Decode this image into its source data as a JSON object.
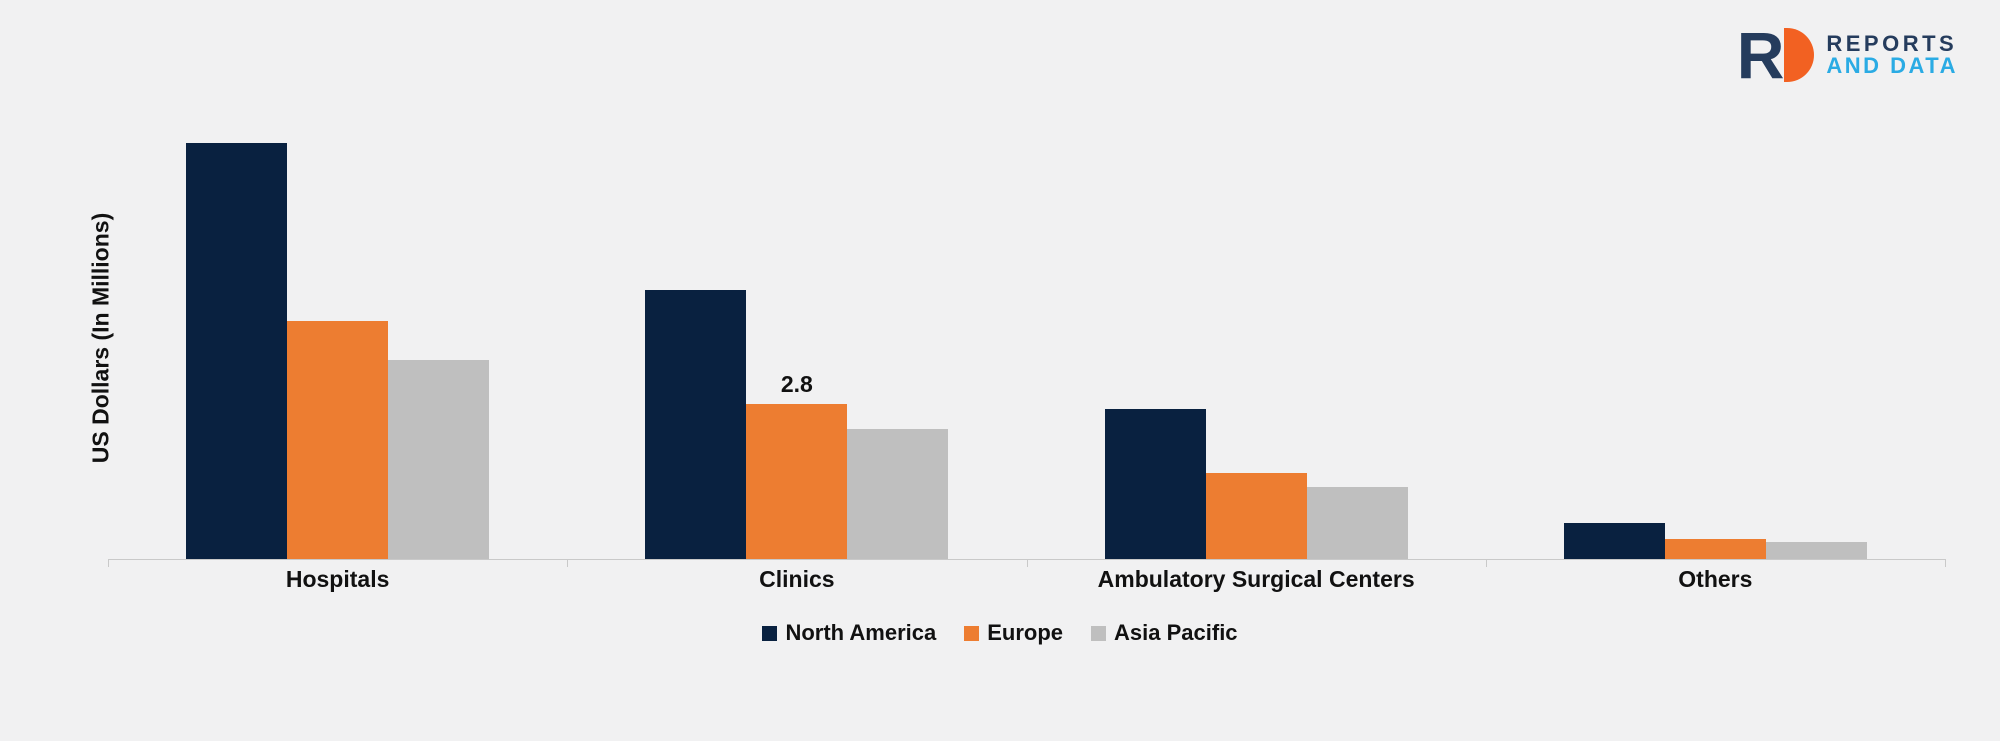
{
  "logo": {
    "mark_r": "R",
    "mark_d": "D",
    "line1": "REPORTS",
    "line2": "AND DATA",
    "colors": {
      "navy": "#253c5d",
      "orange": "#f26122",
      "light_blue": "#2aabe4"
    }
  },
  "chart_data": {
    "type": "bar",
    "title": "",
    "ylabel": "US Dollars (In Millions)",
    "xlabel": "",
    "categories": [
      "Hospitals",
      "Clinics",
      "Ambulatory Surgical Centers",
      "Others"
    ],
    "series": [
      {
        "name": "North America",
        "color": "#092140",
        "values": [
          7.5,
          4.85,
          2.7,
          0.65
        ]
      },
      {
        "name": "Europe",
        "color": "#ed7d31",
        "values": [
          4.3,
          2.8,
          1.55,
          0.36
        ]
      },
      {
        "name": "Asia Pacific",
        "color": "#bfbfbf",
        "values": [
          3.6,
          2.35,
          1.3,
          0.3
        ]
      }
    ],
    "data_labels": [
      {
        "category_index": 1,
        "series_index": 1,
        "text": "2.8"
      }
    ],
    "ylim": [
      0,
      7.6
    ],
    "grid": false,
    "legend_position": "bottom"
  },
  "colors": {
    "background": "#f1f1f2",
    "axis": "#c9c9c9",
    "text": "#111111"
  }
}
